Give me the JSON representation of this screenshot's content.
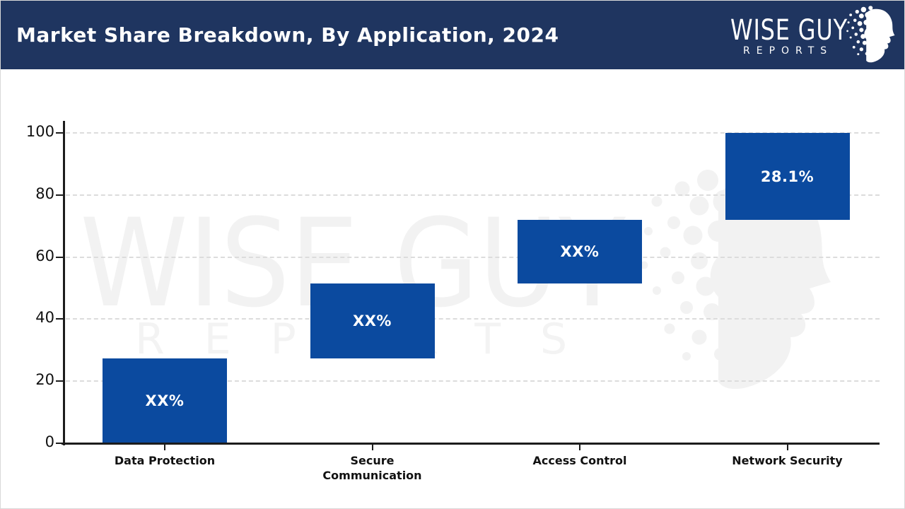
{
  "header": {
    "title": "Market Share Breakdown, By Application, 2024",
    "bg_color": "#1f3560",
    "logo": {
      "line1": "WISE GUY",
      "line2": "REPORTS"
    }
  },
  "watermark": {
    "line1": "WISE GUY",
    "line2": "REPORTS"
  },
  "chart_data": {
    "type": "bar",
    "subtype": "waterfall",
    "title": "Market Share Breakdown, By Application, 2024",
    "xlabel": "",
    "ylabel": "",
    "categories": [
      "Data Protection",
      "Secure\nCommunication",
      "Access Control",
      "Network Security"
    ],
    "bar_labels": [
      "XX%",
      "XX%",
      "XX%",
      "28.1%"
    ],
    "values": [
      27.3,
      24.2,
      20.4,
      28.1
    ],
    "segments": [
      {
        "category": "Data Protection",
        "label": "XX%",
        "start": 0,
        "end": 27.3
      },
      {
        "category": "Secure Communication",
        "label": "XX%",
        "start": 27.3,
        "end": 51.5
      },
      {
        "category": "Access Control",
        "label": "XX%",
        "start": 51.5,
        "end": 71.9
      },
      {
        "category": "Network Security",
        "label": "28.1%",
        "start": 71.9,
        "end": 100
      }
    ],
    "ylim": [
      0,
      100
    ],
    "yticks": [
      0,
      20,
      40,
      60,
      80,
      100
    ],
    "grid": "horizontal-dashed",
    "legend": "none",
    "bar_color": "#0b4a9f",
    "bar_label_color": "#ffffff",
    "axis_color": "#1c1c1c",
    "grid_color": "#dcdcdc"
  }
}
